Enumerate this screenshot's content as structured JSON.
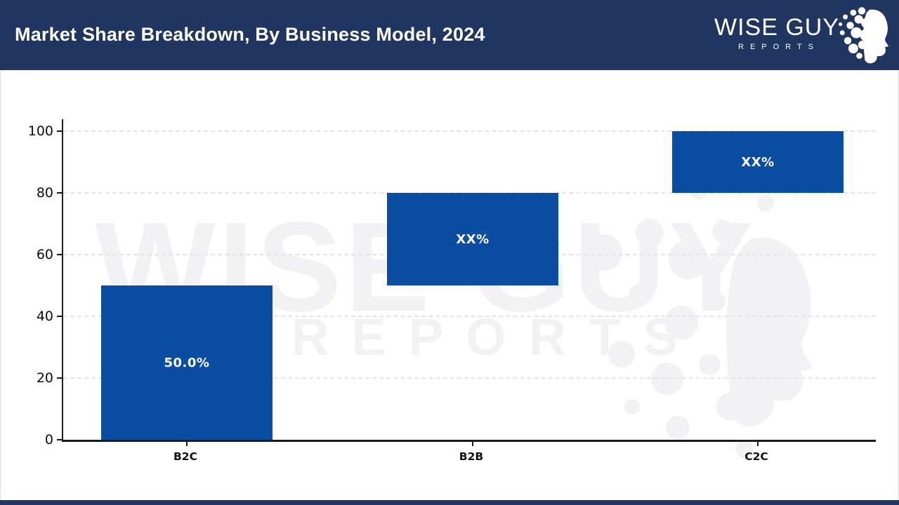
{
  "header": {
    "title": "Market Share Breakdown, By Business Model, 2024",
    "bg_color": "#20355F",
    "logo": {
      "line1": "WISE GUY",
      "line2": "REPORTS"
    }
  },
  "watermark": {
    "line1": "WISE GUY",
    "line2": "REPORTS",
    "color": "#f2f2f4"
  },
  "chart_data": {
    "type": "bar",
    "variant": "waterfall",
    "title": "Market Share Breakdown, By Business Model, 2024",
    "categories": [
      "B2C",
      "B2B",
      "C2C"
    ],
    "series": [
      {
        "name": "Market Share",
        "segments": [
          {
            "category": "B2C",
            "start": 0,
            "end": 50,
            "label": "50.0%"
          },
          {
            "category": "B2B",
            "start": 50,
            "end": 80,
            "label": "XX%"
          },
          {
            "category": "C2C",
            "start": 80,
            "end": 100,
            "label": "XX%"
          }
        ]
      }
    ],
    "xlabel": "",
    "ylabel": "",
    "ylim": [
      0,
      100
    ],
    "yticks": [
      0,
      20,
      40,
      60,
      80,
      100
    ],
    "grid": "horizontal-dashed",
    "legend": "none",
    "bar_color": "#0B4DA2",
    "bar_label_color": "#FFFFFF",
    "axis_color": "#1a1a1a",
    "grid_color": "#e4e4e6"
  }
}
